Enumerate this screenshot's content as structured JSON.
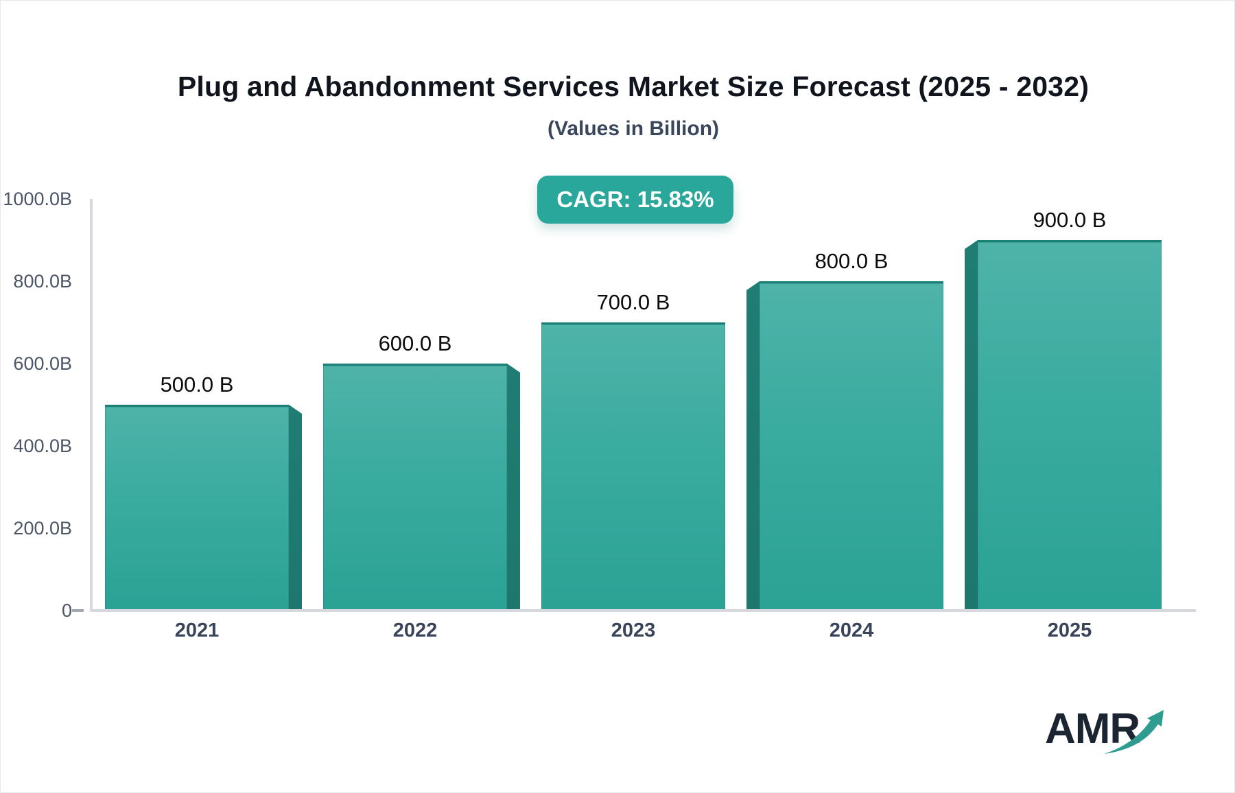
{
  "header": {
    "title": "Plug and Abandonment Services Market Size Forecast (2025 - 2032)",
    "subtitle": "(Values in Billion)",
    "cagr_badge": "CAGR: 15.83%"
  },
  "chart_data": {
    "type": "bar",
    "title": "Plug and Abandonment Services Market Size Forecast (2025 - 2032)",
    "subtitle": "(Values in Billion)",
    "unit": "Billion",
    "categories": [
      "2021",
      "2022",
      "2023",
      "2024",
      "2025"
    ],
    "values": [
      500.0,
      600.0,
      700.0,
      800.0,
      900.0
    ],
    "bar_labels": [
      "500.0 B",
      "600.0 B",
      "700.0 B",
      "800.0 B",
      "900.0 B"
    ],
    "cagr_percent": 15.83,
    "xlabel": "",
    "ylabel": "",
    "ylim": [
      0,
      1000
    ],
    "ytick_values": [
      0,
      200,
      400,
      600,
      800,
      1000
    ],
    "ytick_labels": [
      "0",
      "200.0B",
      "400.0B",
      "600.0B",
      "800.0B",
      "1000.0B"
    ],
    "grid": false,
    "legend": false,
    "style": "3d-bars-center-perspective"
  },
  "colors": {
    "bar_top": "#4fb3a9",
    "bar_bottom": "#2aa294",
    "bar_side": "#1f7d73",
    "bar_edge": "#1c7f75",
    "axis_line": "#d7d9de",
    "ytick_text": "#4b5565",
    "xtick_text": "#39445a",
    "badge_bg": "#2aa79b",
    "badge_text": "#ffffff",
    "title_text": "#10151d",
    "subtitle_text": "#3a465a",
    "logo_navy": "#1b2531",
    "logo_teal": "#2f9c92"
  },
  "logo": {
    "text": "AMR"
  }
}
